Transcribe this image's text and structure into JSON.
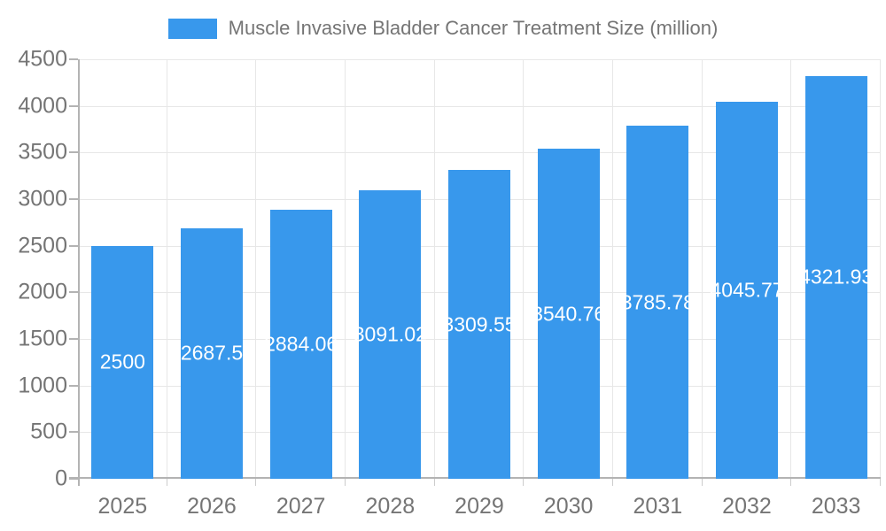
{
  "chart_data": {
    "type": "bar",
    "title": "Muscle Invasive Bladder Cancer Treatment Size (million)",
    "legend_position": "top",
    "xlabel": "",
    "ylabel": "",
    "categories": [
      "2025",
      "2026",
      "2027",
      "2028",
      "2029",
      "2030",
      "2031",
      "2032",
      "2033"
    ],
    "values": [
      2500,
      2687.5,
      2884.06,
      3091.02,
      3309.55,
      3540.76,
      3785.78,
      4045.77,
      4321.93
    ],
    "bar_labels": [
      "2500",
      "2687.5",
      "2884.06",
      "3091.02",
      "3309.55",
      "3540.76",
      "3785.78",
      "4045.77",
      "4321.93"
    ],
    "ylim": [
      0,
      4500
    ],
    "ytick_labels": [
      "0",
      "500",
      "1000",
      "1500",
      "2000",
      "2500",
      "3000",
      "3500",
      "4000",
      "4500"
    ],
    "grid": true,
    "colors": {
      "bar": "#3898ec",
      "bar_label": "#ffffff",
      "grid": "#e7e7e7",
      "axis": "#b3b3b3",
      "boundary_tick": "#cccccc",
      "text": "#757575",
      "background": "#ffffff"
    }
  }
}
